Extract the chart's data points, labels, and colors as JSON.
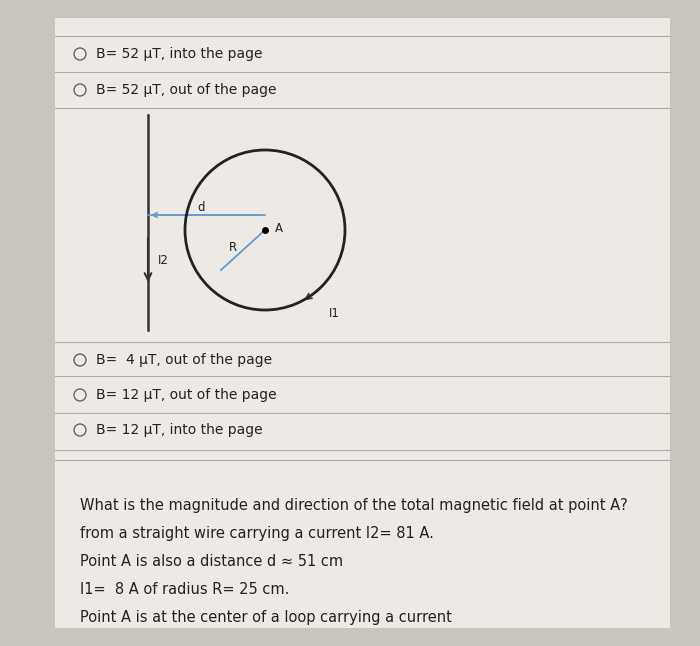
{
  "bg_color": "#c8c4be",
  "panel_color": "#e8e4df",
  "text_color": "#222222",
  "title_lines": [
    "Point A is at the center of a loop carrying a current",
    "I1=  8 A of radius R= 25 cm.",
    "Point A is also a distance d ≈ 51 cm",
    "from a straight wire carrying a current I2= 81 A.",
    "What is the magnitude and direction of the total magnetic field at point A?"
  ],
  "options": [
    "B= 12 μT, into the page",
    "B= 12 μT, out of the page",
    "B=  4 μT, out of the page",
    "B= 52 μT, out of the page",
    "B= 52 μT, into the page"
  ],
  "font_size_text": 10.5,
  "font_size_option": 10.0,
  "font_size_diagram": 8.5,
  "sep_color": "#b0aca8",
  "wire_color": "#333333",
  "circle_color": "#222222",
  "R_line_color": "#6699cc",
  "d_line_color": "#6699cc",
  "arrow_color": "#333333"
}
